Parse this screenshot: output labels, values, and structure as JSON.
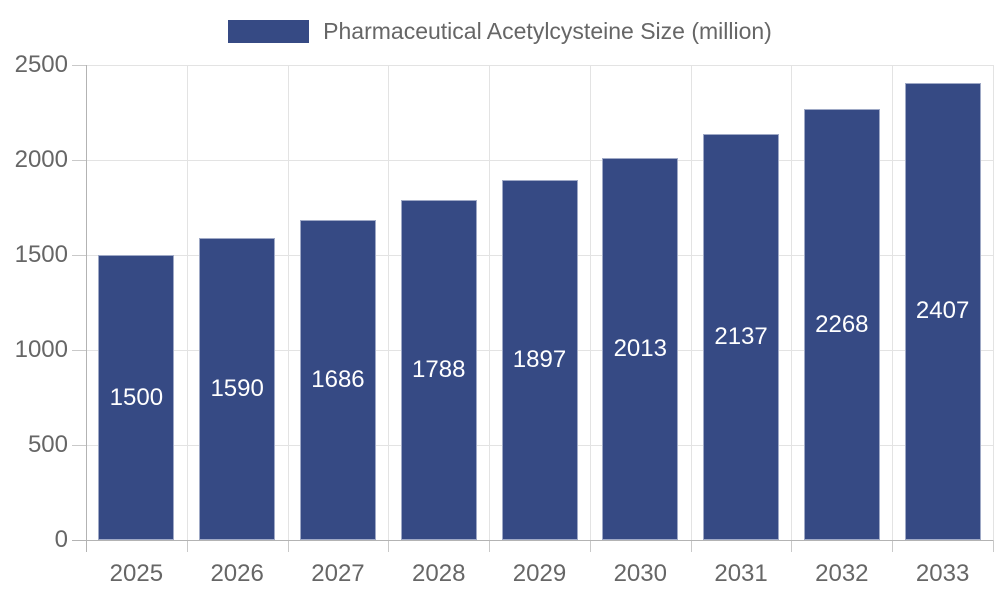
{
  "legend": {
    "label": "Pharmaceutical Acetylcysteine Size (million)",
    "swatch_color": "#364a84"
  },
  "chart_data": {
    "type": "bar",
    "title": "Pharmaceutical Acetylcysteine Size (million)",
    "series_name": "Pharmaceutical Acetylcysteine Size (million)",
    "categories": [
      "2025",
      "2026",
      "2027",
      "2028",
      "2029",
      "2030",
      "2031",
      "2032",
      "2033"
    ],
    "values": [
      1500,
      1590,
      1686,
      1788,
      1897,
      2013,
      2137,
      2268,
      2407
    ],
    "value_labels": [
      "1500",
      "1590",
      "1686",
      "1788",
      "1897",
      "2013",
      "2137",
      "2268",
      "2407"
    ],
    "xlabel": "",
    "ylabel": "",
    "ylim": [
      0,
      2500
    ],
    "yticks": [
      0,
      500,
      1000,
      1500,
      2000,
      2500
    ],
    "grid": true,
    "legend_position": "top-center",
    "bar_color": "#364a84",
    "value_label_color": "#ffffff",
    "axis_label_color": "#666666",
    "grid_color": "#e3e3e3",
    "axis_line_color": "#b3b3b3"
  }
}
